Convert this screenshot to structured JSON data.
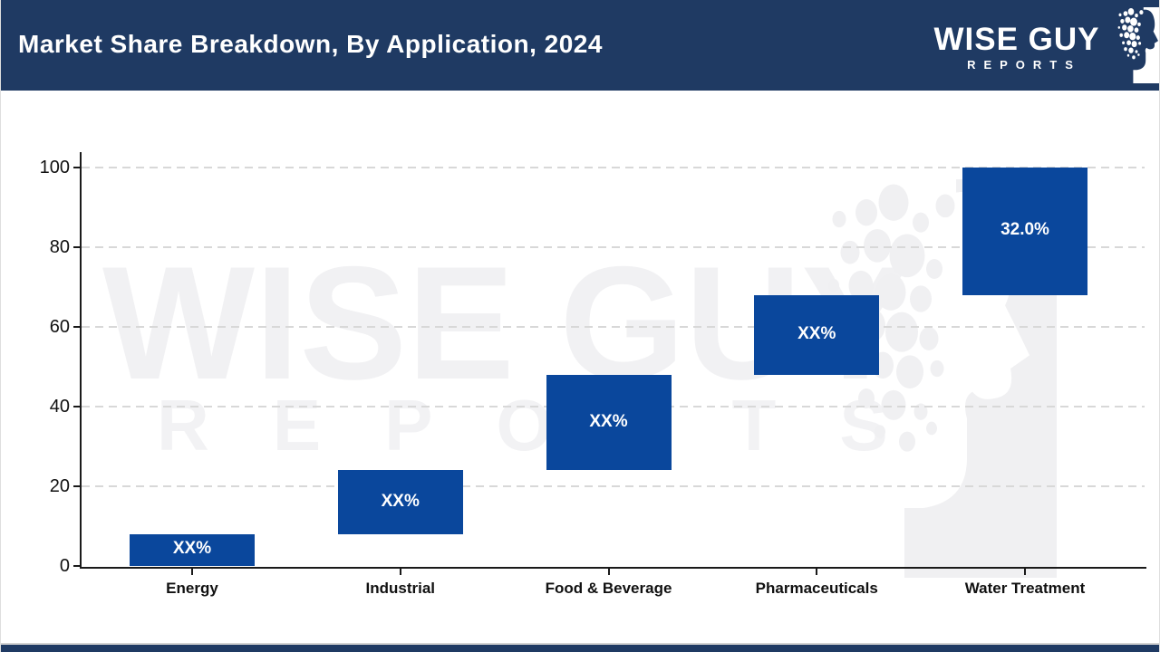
{
  "header": {
    "title": "Market Share Breakdown, By Application, 2024",
    "logo": {
      "line1": "WISE GUY",
      "line2": "REPORTS"
    }
  },
  "watermark": {
    "line1": "WISE GUY",
    "line2": "REPORTS"
  },
  "footer": {},
  "colors": {
    "header_bg": "#1f3a63",
    "bar": "#0a479c",
    "grid": "#d8d8d8",
    "axis": "#1a1a1a",
    "bar_label_text": "#ffffff",
    "watermark": "#f1f1f3"
  },
  "chart_data": {
    "type": "bar",
    "subtype": "waterfall",
    "title": "Market Share Breakdown, By Application, 2024",
    "categories": [
      "Energy",
      "Industrial",
      "Food & Beverage",
      "Pharmaceuticals",
      "Water Treatment"
    ],
    "segments": [
      {
        "category": "Energy",
        "start": 0,
        "end": 8,
        "label": "XX%"
      },
      {
        "category": "Industrial",
        "start": 8,
        "end": 24,
        "label": "XX%"
      },
      {
        "category": "Food & Beverage",
        "start": 24,
        "end": 48,
        "label": "XX%"
      },
      {
        "category": "Pharmaceuticals",
        "start": 48,
        "end": 68,
        "label": "XX%"
      },
      {
        "category": "Water Treatment",
        "start": 68,
        "end": 100,
        "label": "32.0%"
      }
    ],
    "values_masked_as": "XX%",
    "only_visible_value": "32.0%",
    "xlabel": "",
    "ylabel": "",
    "ylim": [
      0,
      100
    ],
    "yticks": [
      0,
      20,
      40,
      60,
      80,
      100
    ],
    "grid": "horizontal-dashed",
    "legend": "none"
  }
}
